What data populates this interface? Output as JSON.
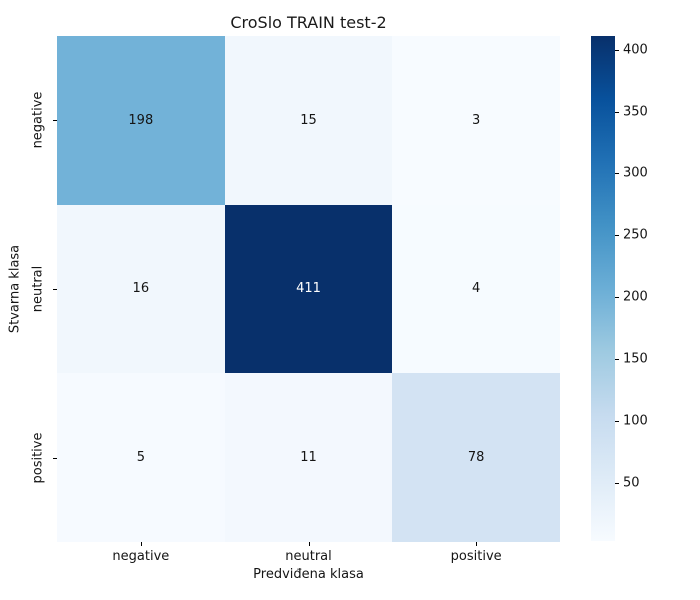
{
  "figure": {
    "background": "#ffffff",
    "text_color": "#1a1a1a",
    "tick_color": "#000000"
  },
  "chart_data": {
    "type": "heatmap",
    "title": "CroSlo TRAIN test-2",
    "xlabel": "Predviđena klasa",
    "ylabel": "Stvarna klasa",
    "x_categories": [
      "negative",
      "neutral",
      "positive"
    ],
    "y_categories": [
      "negative",
      "neutral",
      "positive"
    ],
    "matrix": [
      [
        198,
        15,
        3
      ],
      [
        16,
        411,
        4
      ],
      [
        5,
        11,
        78
      ]
    ],
    "cell_colors": [
      [
        "#72b2d8",
        "#f1f7fd",
        "#f7fbff"
      ],
      [
        "#f1f7fd",
        "#08306b",
        "#f6fbff"
      ],
      [
        "#f6faff",
        "#f3f8fe",
        "#d3e3f3"
      ]
    ],
    "cell_text_colors": [
      [
        "#151515",
        "#151515",
        "#151515"
      ],
      [
        "#151515",
        "#ffffff",
        "#151515"
      ],
      [
        "#151515",
        "#151515",
        "#151515"
      ]
    ],
    "colormap": "Blues",
    "vmin": 3,
    "vmax": 411,
    "annotations": true,
    "grid": false,
    "colorbar": {
      "position": "right",
      "ticks": [
        50,
        100,
        150,
        200,
        250,
        300,
        350,
        400
      ],
      "gradient_stops": [
        "#f7fbff",
        "#deebf7",
        "#c6dbef",
        "#9ecae1",
        "#6baed6",
        "#4292c6",
        "#2171b5",
        "#08519c",
        "#08306b"
      ]
    }
  }
}
